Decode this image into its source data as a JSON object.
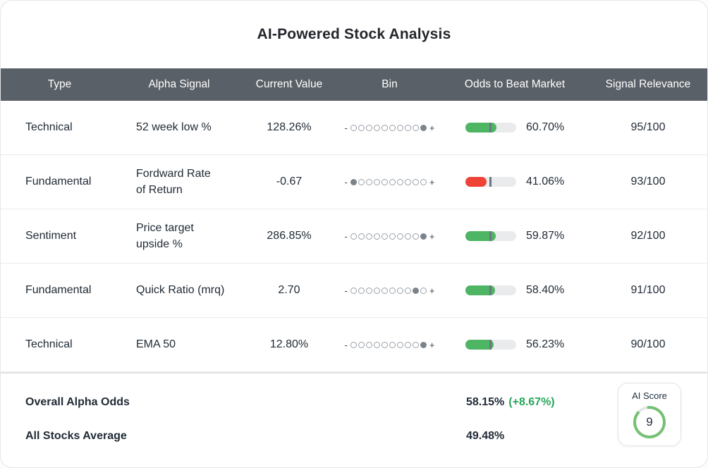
{
  "title": "AI-Powered Stock Analysis",
  "bin": {
    "minus_label": "-",
    "plus_label": "+"
  },
  "colors": {
    "header_bg": "#5a6067",
    "green": "#4db563",
    "red": "#ef4337",
    "bar_track": "#e9ebec",
    "marker": "#6d7680",
    "delta_green": "#27a65b",
    "ring_green": "#74c174",
    "ring_track": "#e4e6e8"
  },
  "chart_data": {
    "type": "table",
    "title": "AI-Powered Stock Analysis",
    "columns": [
      "Type",
      "Alpha Signal",
      "Current Value",
      "Bin",
      "Odds to Beat Market",
      "Signal Relevance"
    ],
    "rows": [
      {
        "type": "Technical",
        "signal": "52 week low %",
        "value": "128.26%",
        "bin_filled_index": 10,
        "bin_count": 10,
        "odds_pct": 60.7,
        "odds_label": "60.70%",
        "bar_color": "green",
        "relevance": "95/100"
      },
      {
        "type": "Fundamental",
        "signal": "Fordward Rate\nof Return",
        "value": "-0.67",
        "bin_filled_index": 1,
        "bin_count": 10,
        "odds_pct": 41.06,
        "odds_label": "41.06%",
        "bar_color": "red",
        "relevance": "93/100"
      },
      {
        "type": "Sentiment",
        "signal": "Price target\nupside %",
        "value": "286.85%",
        "bin_filled_index": 10,
        "bin_count": 10,
        "odds_pct": 59.87,
        "odds_label": "59.87%",
        "bar_color": "green",
        "relevance": "92/100"
      },
      {
        "type": "Fundamental",
        "signal": "Quick Ratio (mrq)",
        "value": "2.70",
        "bin_filled_index": 9,
        "bin_count": 10,
        "odds_pct": 58.4,
        "odds_label": "58.40%",
        "bar_color": "green",
        "relevance": "91/100"
      },
      {
        "type": "Technical",
        "signal": "EMA 50",
        "value": "12.80%",
        "bin_filled_index": 10,
        "bin_count": 10,
        "odds_pct": 56.23,
        "odds_label": "56.23%",
        "bar_color": "green",
        "relevance": "90/100"
      }
    ]
  },
  "footer": {
    "overall_label": "Overall Alpha Odds",
    "overall_value": "58.15%",
    "overall_delta": "(+8.67%)",
    "average_label": "All Stocks Average",
    "average_value": "49.48%",
    "average_marker_pct": 49.48,
    "ai_score_label": "AI Score",
    "ai_score_value": "9",
    "ai_score_max": 10
  }
}
